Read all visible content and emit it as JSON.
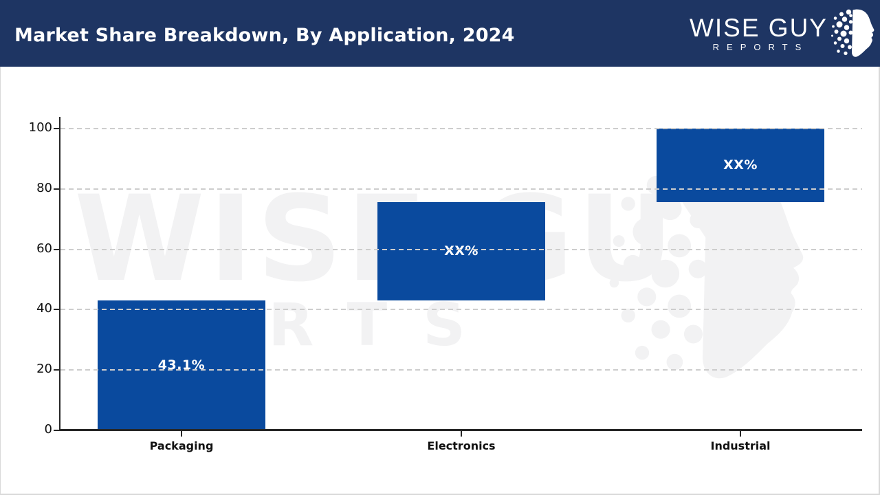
{
  "header": {
    "title": "Market Share Breakdown, By Application, 2024",
    "logo": {
      "wordmark": "WISE GUY",
      "tagline": "REPORTS"
    }
  },
  "watermark": {
    "wordmark": "WISE GUY",
    "tagline": "PORTS"
  },
  "colors": {
    "header_bg": "#1e3563",
    "bar": "#0a4a9e",
    "axis": "#262626",
    "grid": "#cdcdcd",
    "bar_label": "#ffffff",
    "watermark": "#f2f2f3"
  },
  "chart_data": {
    "type": "bar",
    "subtype": "floating-segment (waterfall style, cumulative share)",
    "title": "Market Share Breakdown, By Application, 2024",
    "categories": [
      "Packaging",
      "Electronics",
      "Industrial"
    ],
    "segments": [
      {
        "category": "Packaging",
        "start": 0,
        "end": 43.1,
        "label": "43.1%"
      },
      {
        "category": "Electronics",
        "start": 43.1,
        "end": 75.7,
        "label": "XX%"
      },
      {
        "category": "Industrial",
        "start": 75.7,
        "end": 100,
        "label": "XX%"
      }
    ],
    "xlabel": "",
    "ylabel": "",
    "ylim": [
      0,
      104
    ],
    "yticks": [
      0,
      20,
      40,
      60,
      80,
      100
    ],
    "grid": "horizontal dashed, drawn over bars",
    "legend": "none",
    "bar_color": "#0a4a9e",
    "value_label_color": "#ffffff"
  }
}
